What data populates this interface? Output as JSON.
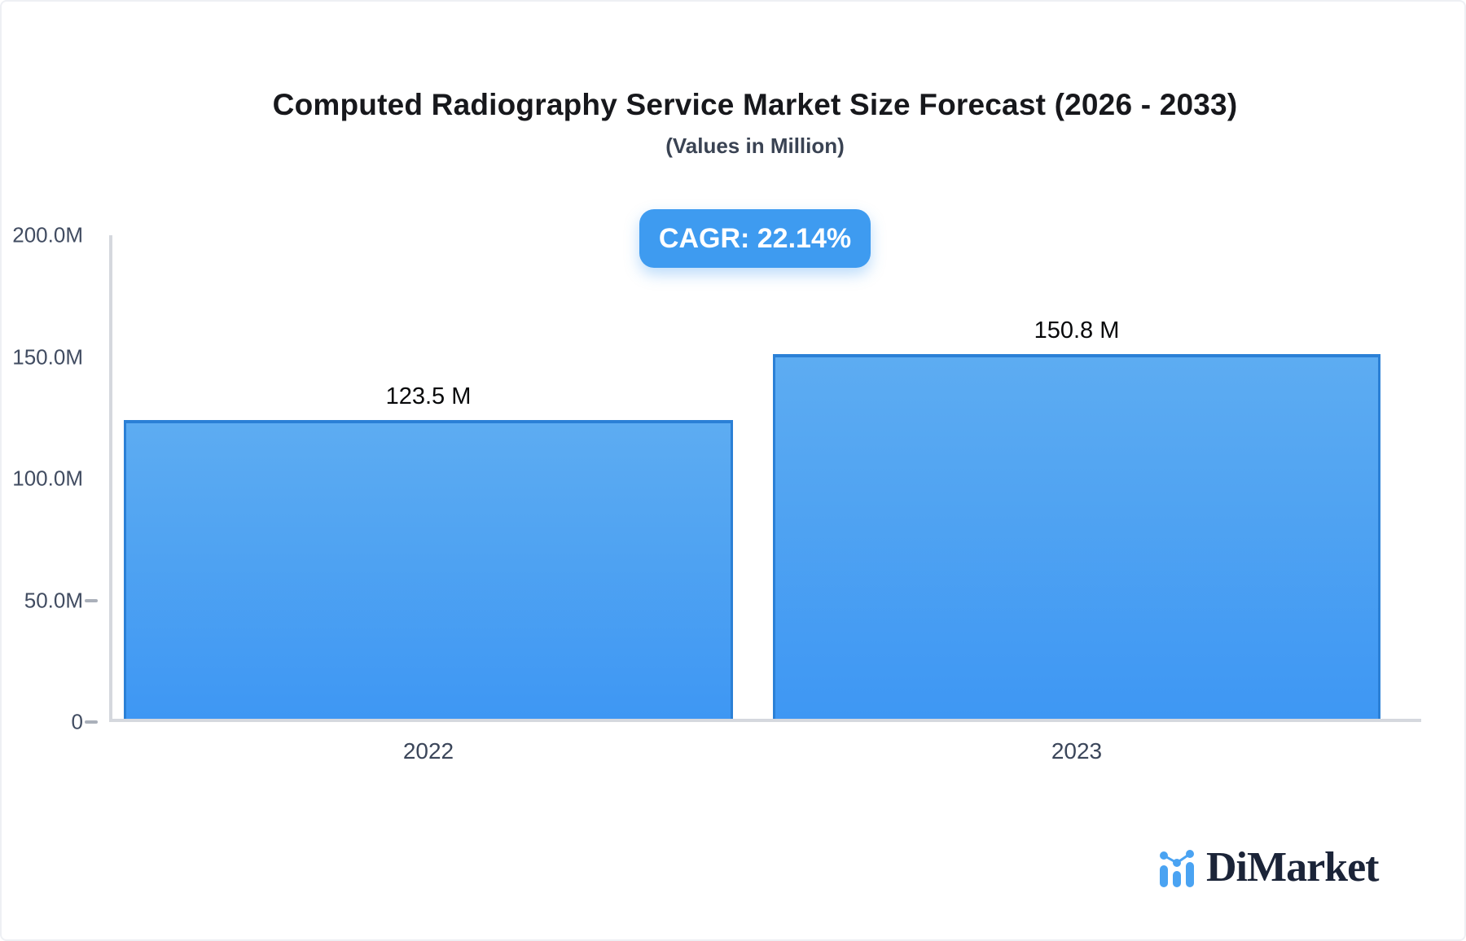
{
  "chart_data": {
    "type": "bar",
    "title": "Computed Radiography Service Market Size Forecast (2026 - 2033)",
    "subtitle": "(Values in Million)",
    "cagr_label": "CAGR: 22.14%",
    "categories": [
      "2022",
      "2023"
    ],
    "values": [
      123.5,
      150.8
    ],
    "bar_labels": [
      "123.5 M",
      "150.8 M"
    ],
    "ylim": [
      0,
      200
    ],
    "ytick_labels": [
      "200.0M",
      "150.0M",
      "100.0M",
      "50.0M",
      "0"
    ],
    "ytick_dashes": [
      "50.0M",
      "0"
    ],
    "grid": false,
    "legend": false,
    "bar_color_top": "#5dacf2",
    "bar_color_bottom": "#3e97f3",
    "bar_border_color": "#2b80d6"
  },
  "badge": {
    "bg": "#3e9bf0",
    "text_color": "#ffffff"
  },
  "logo": {
    "brand": "DiMarket",
    "icon": "mini-bar-chart-icon",
    "blue": "#4aa3f2",
    "text_color": "#1b2438"
  }
}
